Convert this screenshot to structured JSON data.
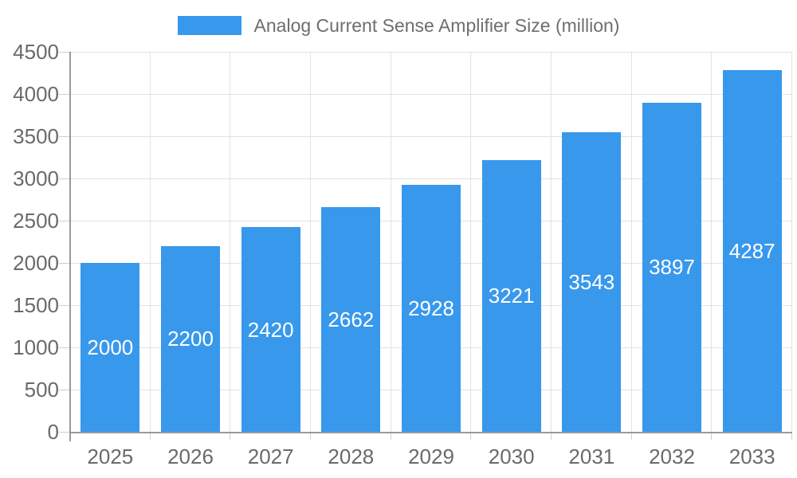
{
  "chart_data": {
    "type": "bar",
    "title": "Analog Current Sense Amplifier Size (million)",
    "series_name": "Analog Current Sense Amplifier Size (million)",
    "categories": [
      "2025",
      "2026",
      "2027",
      "2028",
      "2029",
      "2030",
      "2031",
      "2032",
      "2033"
    ],
    "values": [
      2000,
      2200,
      2420,
      2662,
      2928,
      3221,
      3543,
      3897,
      4287
    ],
    "value_labels": [
      "2000",
      "2200",
      "2420",
      "2662",
      "2928",
      "3221",
      "3543",
      "3897",
      "4287"
    ],
    "xlabel": "",
    "ylabel": "",
    "ylim": [
      0,
      4500
    ],
    "ytick_step": 500,
    "ytick_labels": [
      "0",
      "500",
      "1000",
      "1500",
      "2000",
      "2500",
      "3000",
      "3500",
      "4000",
      "4500"
    ],
    "grid": true,
    "legend_position": "top",
    "colors": {
      "bar": "#3898EC",
      "value_label": "#FFFFFF",
      "axis_text": "#6A6A6A",
      "legend_text": "#6E6E6E",
      "gridline": "#E3E3E3",
      "tick": "#CFCFCF",
      "axis_line": "#9A9A9A"
    }
  }
}
